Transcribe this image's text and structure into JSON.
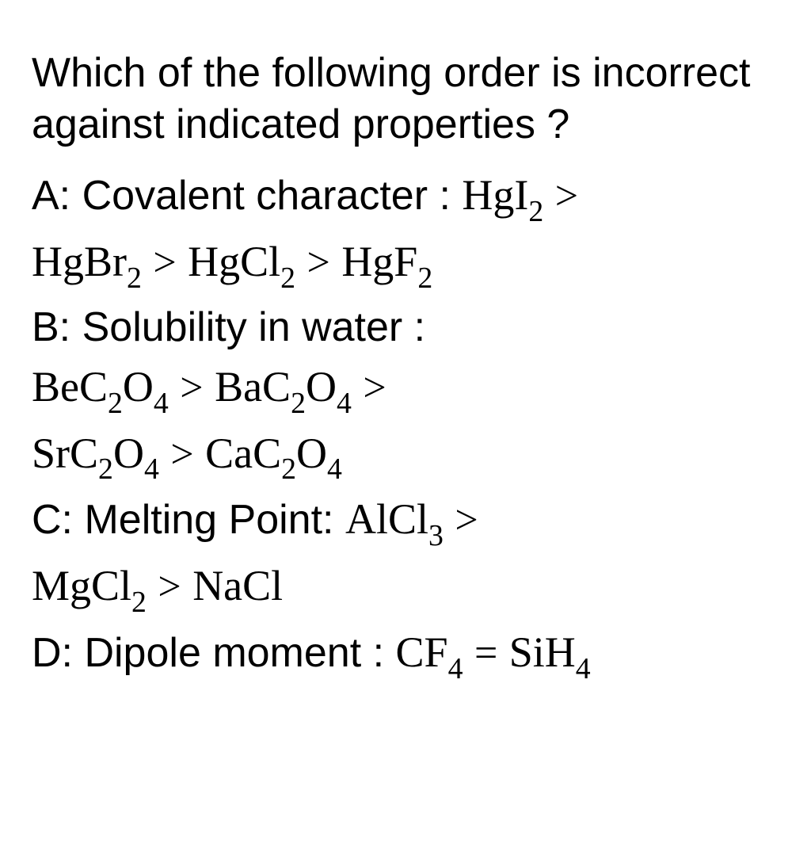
{
  "question": {
    "text": "Which of the following order is incorrect against indicated properties ?",
    "fontsize": 52,
    "text_color": "#000000",
    "background_color": "#ffffff"
  },
  "options": {
    "A": {
      "label": "A:",
      "property": "Covalent character :",
      "formulas": [
        "HgI",
        "HgBr",
        "HgCl",
        "HgF"
      ],
      "subscripts": [
        "2",
        "2",
        "2",
        "2"
      ],
      "comparator": ">"
    },
    "B": {
      "label": "B:",
      "property": "Solubility in water :",
      "formulas": [
        "BeC",
        "O",
        "BaC",
        "O",
        "SrC",
        "O",
        "CaC",
        "O"
      ],
      "subscripts": [
        "2",
        "4",
        "2",
        "4",
        "2",
        "4",
        "2",
        "4"
      ],
      "comparator": ">"
    },
    "C": {
      "label": "C:",
      "property": "Melting Point:",
      "formulas": [
        "AlCl",
        "MgCl",
        "NaCl"
      ],
      "subscripts": [
        "3",
        "2",
        ""
      ],
      "comparator": ">"
    },
    "D": {
      "label": "D:",
      "property": "Dipole moment :",
      "formulas": [
        "CF",
        "SiH"
      ],
      "subscripts": [
        "4",
        "4"
      ],
      "comparator": "="
    }
  },
  "styling": {
    "body_font": "Arial, Helvetica, sans-serif",
    "formula_font": "Times New Roman, Times, serif",
    "font_size_main": 52,
    "font_size_formula": 54,
    "subscript_scale": 0.7,
    "text_color": "#000000",
    "background_color": "#ffffff",
    "line_height": 1.35
  }
}
